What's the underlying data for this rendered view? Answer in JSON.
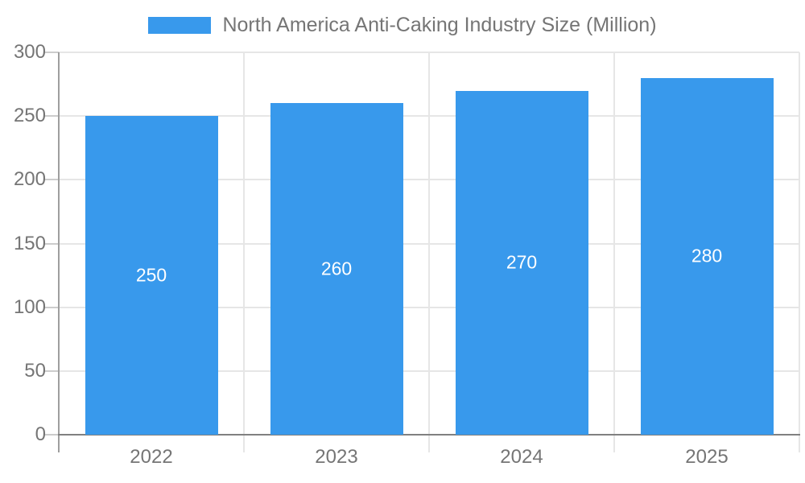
{
  "chart_data": {
    "type": "bar",
    "title": "North America Anti-Caking Industry Size (Million)",
    "categories": [
      "2022",
      "2023",
      "2024",
      "2025"
    ],
    "series": [
      {
        "name": "North America Anti-Caking Industry Size (Million)",
        "values": [
          250,
          260,
          270,
          280
        ]
      }
    ],
    "xlabel": "",
    "ylabel": "",
    "ylim": [
      0,
      300
    ],
    "yticks": [
      0,
      50,
      100,
      150,
      200,
      250,
      300
    ],
    "grid": true,
    "legend_position": "top",
    "bar_labels_visible": true
  },
  "legend": {
    "label": "North America Anti-Caking Industry Size (Million)"
  },
  "colors": {
    "bar": "#3899ec",
    "bar_value_label": "#ffffff",
    "axis_text": "#757575",
    "legend_text": "#757575",
    "gridline": "#e6e6e6",
    "tick": "#cccccc",
    "y_axis_line": "#9e9e9e",
    "x_axis_line": "#808080",
    "background": "#ffffff"
  }
}
